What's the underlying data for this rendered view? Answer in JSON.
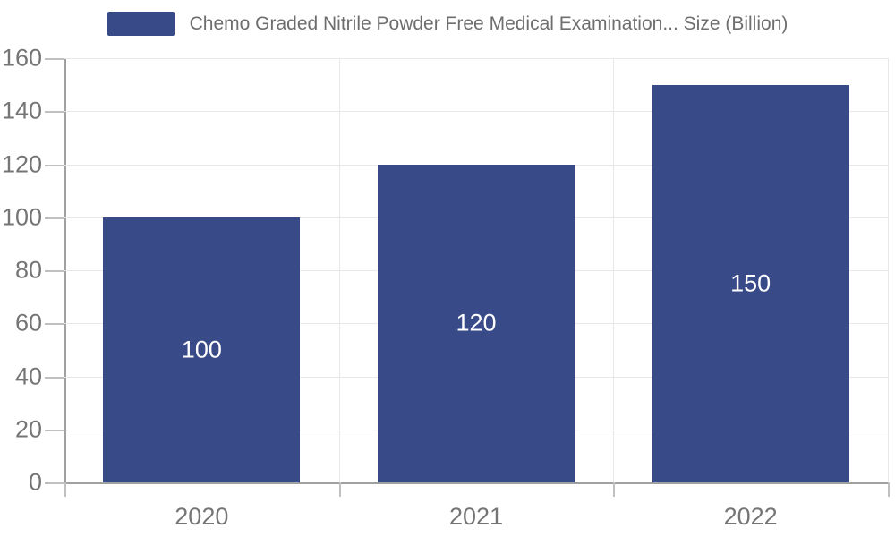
{
  "legend": {
    "label": "Chemo Graded Nitrile Powder Free Medical Examination... Size (Billion)"
  },
  "chart_data": {
    "type": "bar",
    "title": "",
    "xlabel": "",
    "ylabel": "",
    "categories": [
      "2020",
      "2021",
      "2022"
    ],
    "series": [
      {
        "name": "Chemo Graded Nitrile Powder Free Medical Examination... Size (Billion)",
        "values": [
          100,
          120,
          150
        ],
        "bar_labels": [
          "100",
          "120",
          "150"
        ]
      }
    ],
    "ylim": [
      0,
      160
    ],
    "ytick_step": 20,
    "ytick_labels": [
      "0",
      "20",
      "40",
      "60",
      "80",
      "100",
      "120",
      "140",
      "160"
    ],
    "grid": true,
    "legend_position": "top-center",
    "style": {
      "background": "#ffffff",
      "bar_color": "#394a88",
      "grid_color": "#e8e8e8",
      "axis_color": "#a0a0a0",
      "tick_color": "#c0c0c0",
      "axis_text_color": "#757575",
      "legend_text_color": "#6e6e6e",
      "bar_label_color": "#ffffff"
    }
  }
}
